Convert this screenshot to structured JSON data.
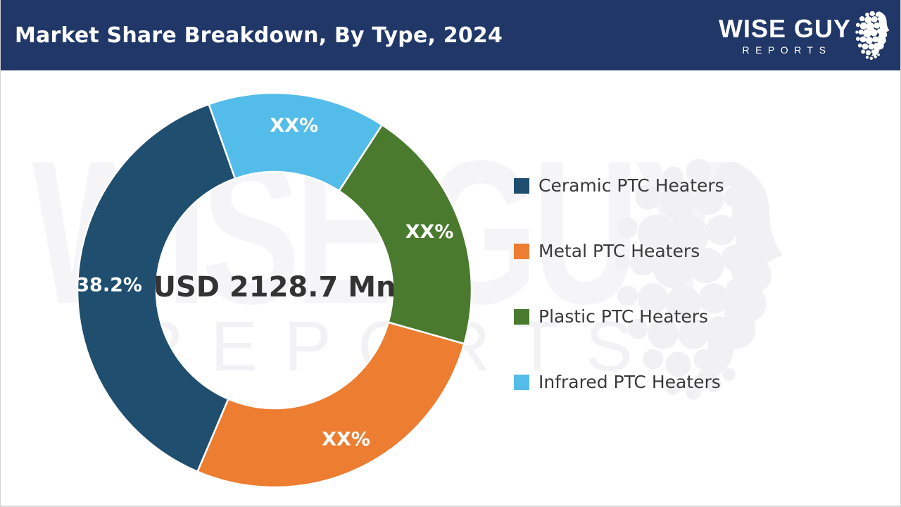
{
  "header": {
    "title": "Market Share Breakdown, By Type, 2024",
    "bg_color": "#203768",
    "text_color": "#ffffff",
    "logo": {
      "line1": "WISE GUY",
      "line2": "REPORTS",
      "face_icon": "dot-face-profile"
    }
  },
  "chart_data": {
    "type": "pie",
    "donut": true,
    "donut_hole_ratio": 0.6,
    "title": "Market Share Breakdown, By Type, 2024",
    "center_label": "USD 2128.7 Mn",
    "start_angle_deg": 203,
    "direction": "clockwise",
    "legend_position": "right",
    "series": [
      {
        "name": "Ceramic PTC Heaters",
        "label": "38.2%",
        "value_pct": 38.2,
        "color": "#1F4E6F"
      },
      {
        "name": "Infrared PTC Heaters",
        "label": "XX%",
        "value_pct": 14.6,
        "color": "#54BCE8"
      },
      {
        "name": "Plastic PTC Heaters",
        "label": "XX%",
        "value_pct": 20.2,
        "color": "#4A7A2E"
      },
      {
        "name": "Metal PTC Heaters",
        "label": "XX%",
        "value_pct": 27.0,
        "color": "#ED7D31"
      }
    ]
  },
  "legend": {
    "items": [
      {
        "label": "Ceramic PTC Heaters",
        "color": "#1F4E6F"
      },
      {
        "label": "Metal PTC Heaters",
        "color": "#ED7D31"
      },
      {
        "label": "Plastic PTC Heaters",
        "color": "#4A7A2E"
      },
      {
        "label": "Infrared PTC Heaters",
        "color": "#54BCE8"
      }
    ]
  },
  "watermark": {
    "line1": "WISE GUY",
    "line2": "REPORTS",
    "word_color": "#f5f5f7",
    "sub_color": "#f2f2f4",
    "face_color": "#f1f1f3"
  }
}
